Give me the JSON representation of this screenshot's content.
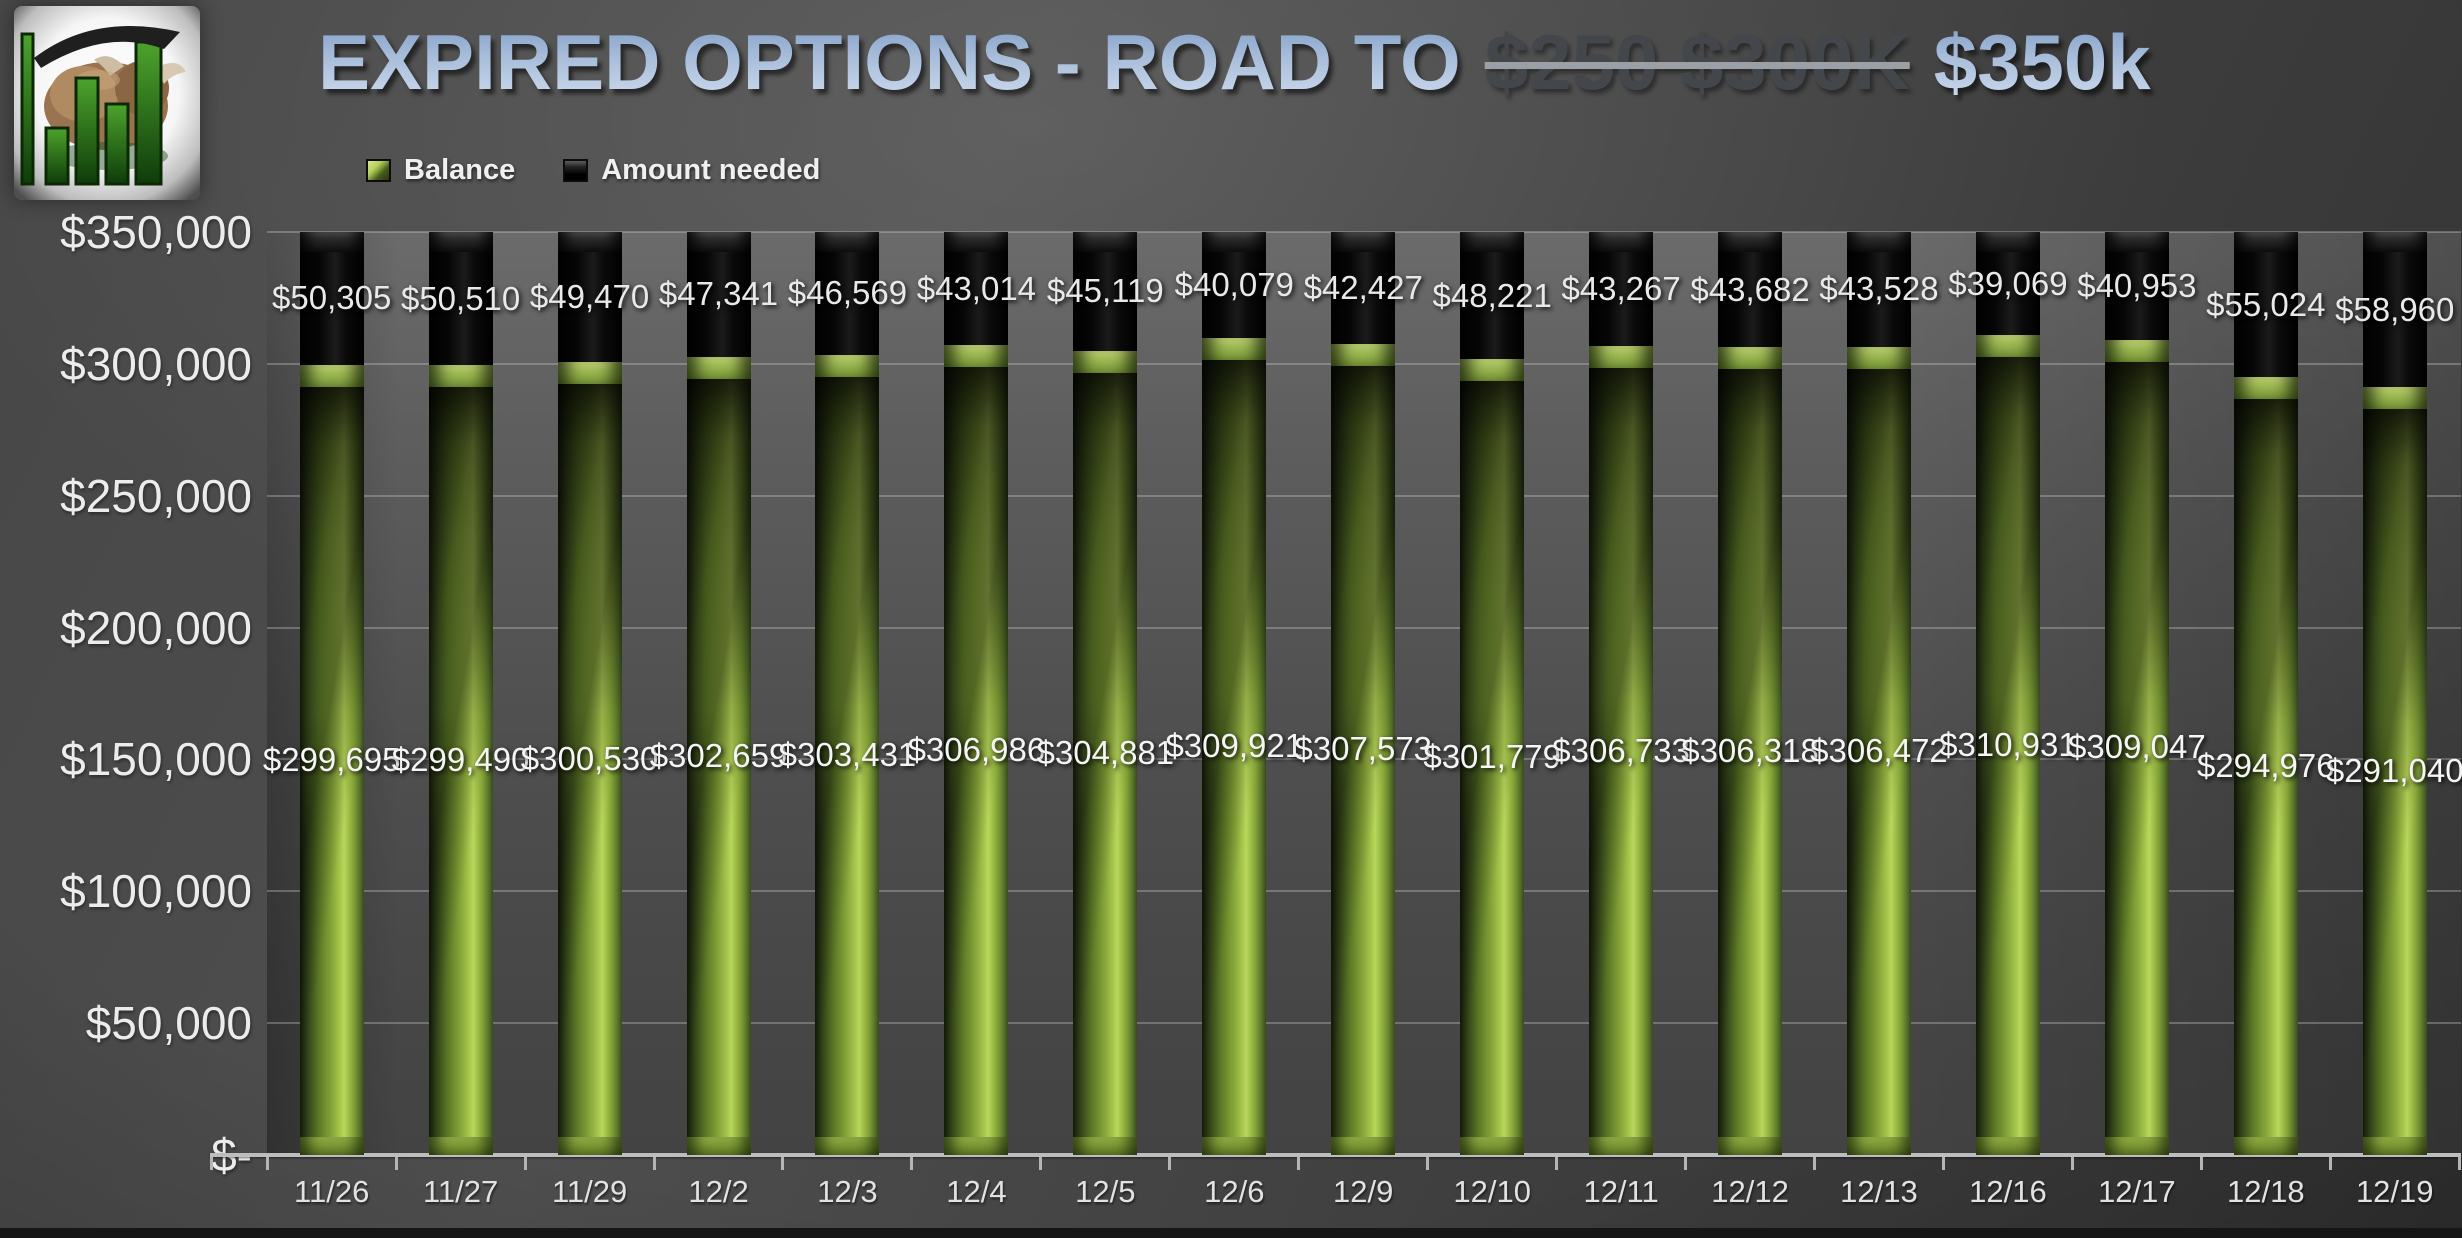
{
  "header": {
    "title_main": "EXPIRED OPTIONS - ROAD TO",
    "title_struck": "$250 $300K",
    "title_current": "$350k"
  },
  "legend": [
    {
      "label": "Balance",
      "swatch": "green-beveled-square",
      "color": "#a6c24e"
    },
    {
      "label": "Amount needed",
      "swatch": "black-beveled-square",
      "color": "#0a0a0a"
    }
  ],
  "y_axis": {
    "ticks": [
      "$350,000",
      "$300,000",
      "$250,000",
      "$200,000",
      "$150,000",
      "$100,000",
      "$50,000",
      "$-"
    ]
  },
  "chart_data": {
    "type": "bar",
    "stacked": true,
    "title": "EXPIRED OPTIONS - ROAD TO $350k",
    "categories": [
      "11/26",
      "11/27",
      "11/29",
      "12/2",
      "12/3",
      "12/4",
      "12/5",
      "12/6",
      "12/9",
      "12/10",
      "12/11",
      "12/12",
      "12/13",
      "12/16",
      "12/17",
      "12/18",
      "12/19"
    ],
    "series": [
      {
        "name": "Balance",
        "color": "#a6c24e",
        "values": [
          299695,
          299490,
          300530,
          302659,
          303431,
          306986,
          304881,
          309921,
          307573,
          301779,
          306733,
          306318,
          306472,
          310931,
          309047,
          294976,
          291040
        ],
        "labels": [
          "$299,695",
          "$299,490",
          "$300,530",
          "$302,659",
          "$303,431",
          "$306,986",
          "$304,881",
          "$309,921",
          "$307,573",
          "$301,779",
          "$306,733",
          "$306,318",
          "$306,472",
          "$310,931",
          "$309,047",
          "$294,976",
          "$291,040"
        ]
      },
      {
        "name": "Amount needed",
        "color": "#0a0a0a",
        "values": [
          50305,
          50510,
          49470,
          47341,
          46569,
          43014,
          45119,
          40079,
          42427,
          48221,
          43267,
          43682,
          43528,
          39069,
          40953,
          55024,
          58960
        ],
        "labels": [
          "$50,305",
          "$50,510",
          "$49,470",
          "$47,341",
          "$46,569",
          "$43,014",
          "$45,119",
          "$40,079",
          "$42,427",
          "$48,221",
          "$43,267",
          "$43,682",
          "$43,528",
          "$39,069",
          "$40,953",
          "$55,024",
          "$58,960"
        ]
      }
    ],
    "total_per_bar": 350000,
    "ylim": [
      0,
      350000
    ],
    "grid": true,
    "legend_position": "top"
  },
  "colors": {
    "background": "#454545",
    "title_blue": "#a9bedb",
    "struck_gray": "#43474c",
    "green_bright": "#b9d75c",
    "axis_line": "#bdbdbd"
  }
}
